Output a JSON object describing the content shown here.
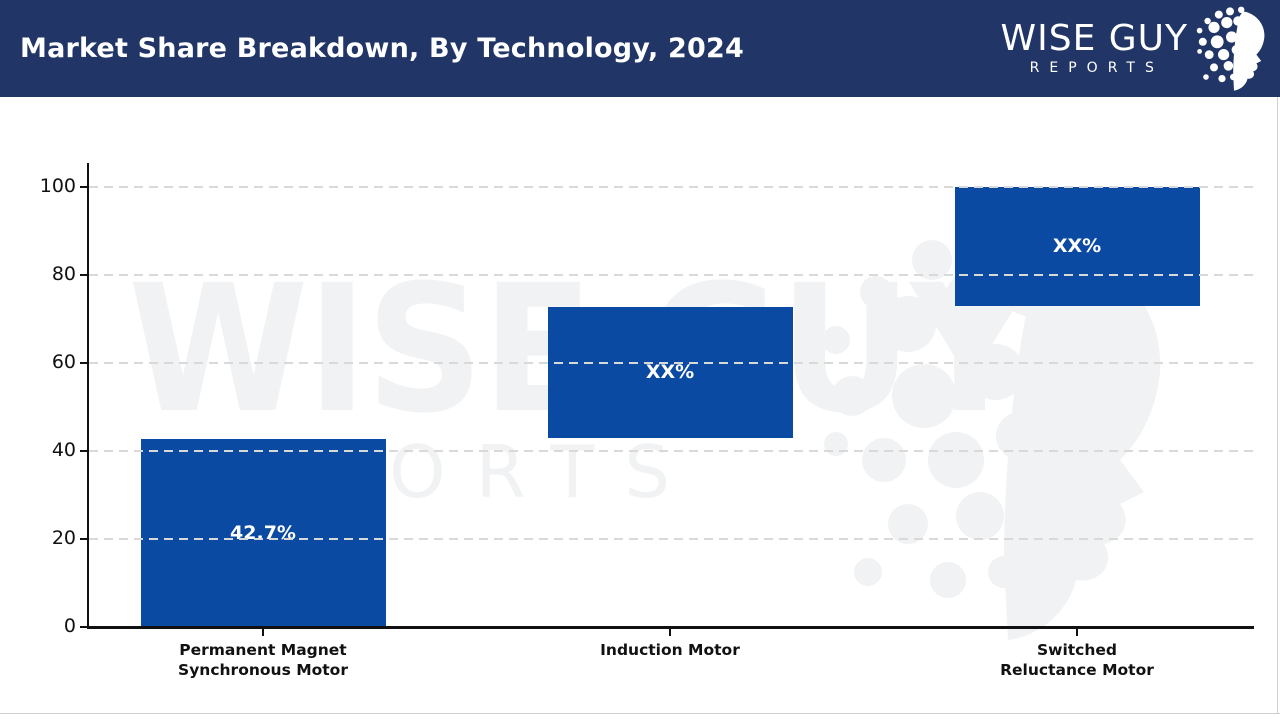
{
  "header": {
    "title": "Market Share Breakdown, By Technology, 2024",
    "logo": {
      "line1": "WISE GUY",
      "line2": "REPORTS"
    }
  },
  "watermark": {
    "line1": "WISE GUY",
    "line2": "REPORTS"
  },
  "chart_data": {
    "type": "bar",
    "subtype": "waterfall",
    "title": "Market Share Breakdown, By Technology, 2024",
    "categories": [
      "Permanent Magnet\nSynchronous Motor",
      "Induction Motor",
      "Switched\nReluctance Motor"
    ],
    "bars": [
      {
        "category": "Permanent Magnet Synchronous Motor",
        "start": 0,
        "end": 42.7,
        "label": "42.7%"
      },
      {
        "category": "Induction Motor",
        "start": 43,
        "end": 72.7,
        "label": "XX%"
      },
      {
        "category": "Switched Reluctance Motor",
        "start": 73,
        "end": 100,
        "label": "XX%"
      }
    ],
    "ylabel": "",
    "xlabel": "",
    "ylim": [
      0,
      105
    ],
    "yticks": [
      0,
      20,
      40,
      60,
      80,
      100
    ],
    "grid": "horizontal-dashed-over-bars",
    "legend": "none",
    "bar_color": "#0b4aa2",
    "bar_label_color": "#ffffff",
    "grid_color": "#d9d9d9",
    "axis_color": "#111111",
    "header_bg_color": "#213666"
  }
}
